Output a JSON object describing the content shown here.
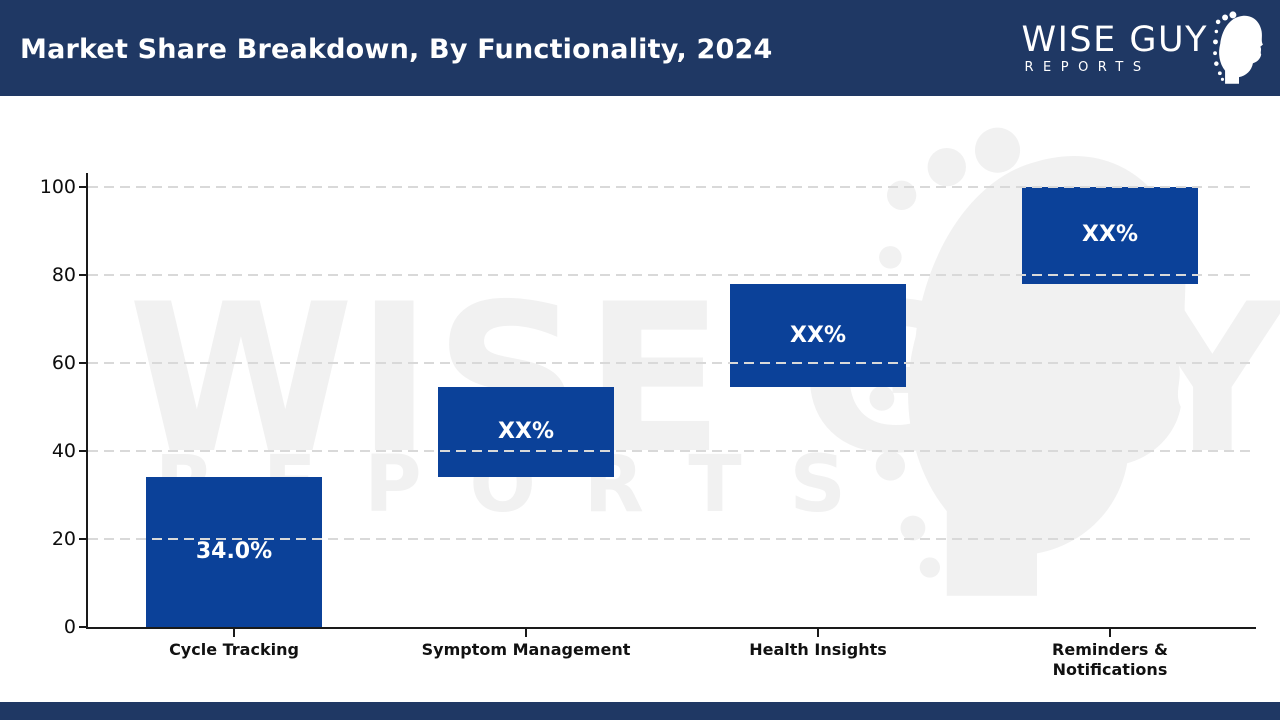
{
  "header": {
    "title": "Market Share Breakdown, By Functionality, 2024",
    "logo": {
      "name": "Wise Guy Reports",
      "line1": "WISE GUY",
      "line2": "REPORTS"
    }
  },
  "watermark": {
    "line1": "WISE GUY",
    "line2": "REPORTS"
  },
  "colors": {
    "header_navy": "#1f3864",
    "bar_blue": "#0b4199",
    "grid_gray": "#d9d9d9",
    "watermark_gray": "#f1f1f1",
    "value_label_white": "#ffffff",
    "axis_black": "#1a1a1a"
  },
  "chart_data": {
    "type": "bar",
    "subtype": "waterfall",
    "title": "Market Share Breakdown, By Functionality, 2024",
    "categories": [
      "Cycle Tracking",
      "Symptom Management",
      "Health Insights",
      "Reminders &\nNotifications"
    ],
    "segments": [
      {
        "category": "Cycle Tracking",
        "start": 0,
        "end": 34.0,
        "label": "34.0%"
      },
      {
        "category": "Symptom Management",
        "start": 34.0,
        "end": 54.5,
        "label": "XX%"
      },
      {
        "category": "Health Insights",
        "start": 54.5,
        "end": 78.0,
        "label": "XX%"
      },
      {
        "category": "Reminders & Notifications",
        "start": 78.0,
        "end": 100.0,
        "label": "XX%"
      }
    ],
    "ylim": [
      0,
      100
    ],
    "yticks": [
      0,
      20,
      40,
      60,
      80,
      100
    ],
    "grid": "horizontal-dashed",
    "legend": "none"
  }
}
